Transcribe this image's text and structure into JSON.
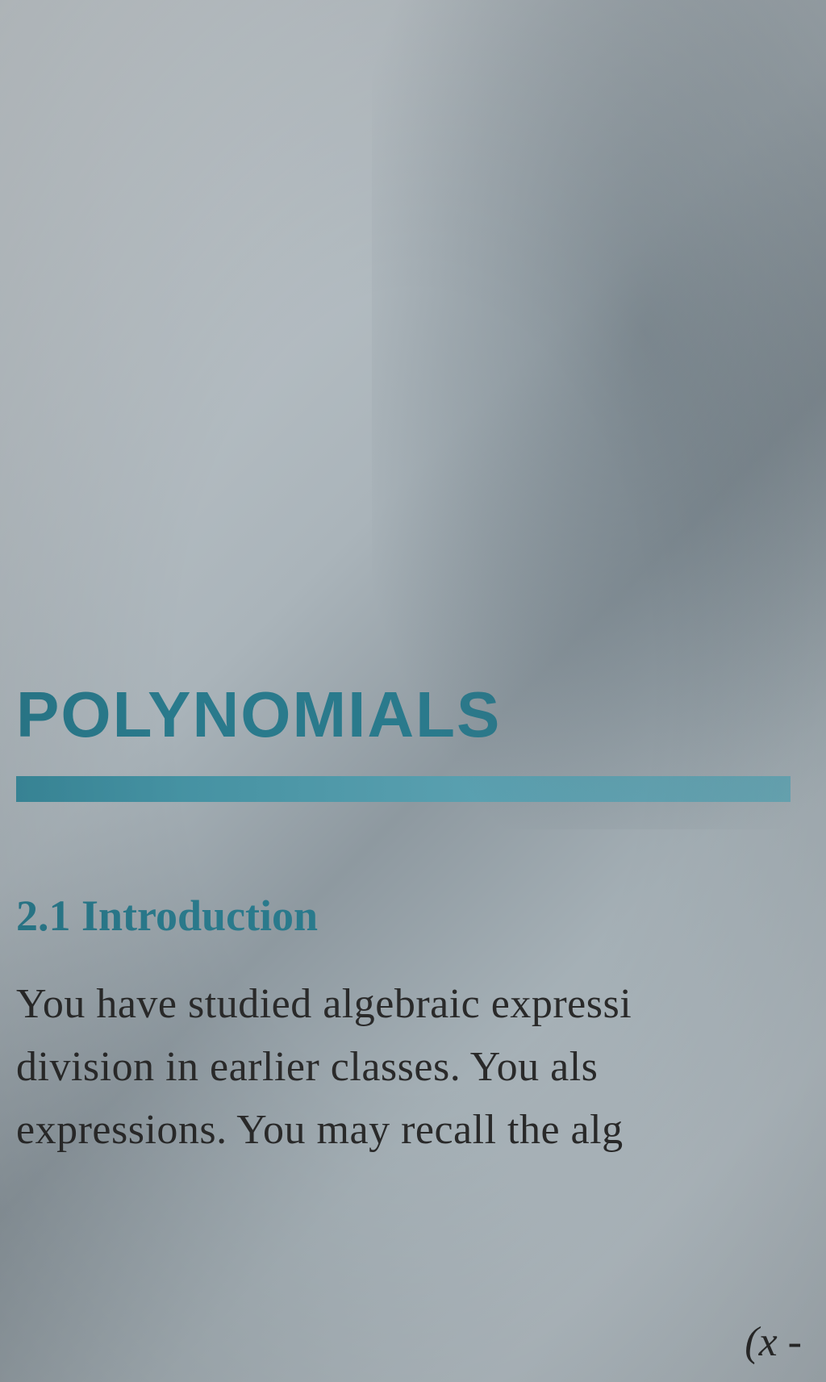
{
  "chapter": {
    "title": "POLYNOMIALS",
    "title_color": "#2a7a8c",
    "title_fontsize": 80,
    "underline_color": "#4a95a5",
    "underline_height": 32
  },
  "section": {
    "number": "2.1",
    "heading": "2.1 Introduction",
    "heading_color": "#2a7a8c",
    "heading_fontsize": 54
  },
  "body": {
    "line1": "You have studied algebraic expressi",
    "line2": "division in earlier classes. You als",
    "line3": "expressions. You may recall the alg",
    "text_color": "#2a2a2a",
    "fontsize": 52
  },
  "formula_fragment": "(x -",
  "page_background": "#b0bac0"
}
